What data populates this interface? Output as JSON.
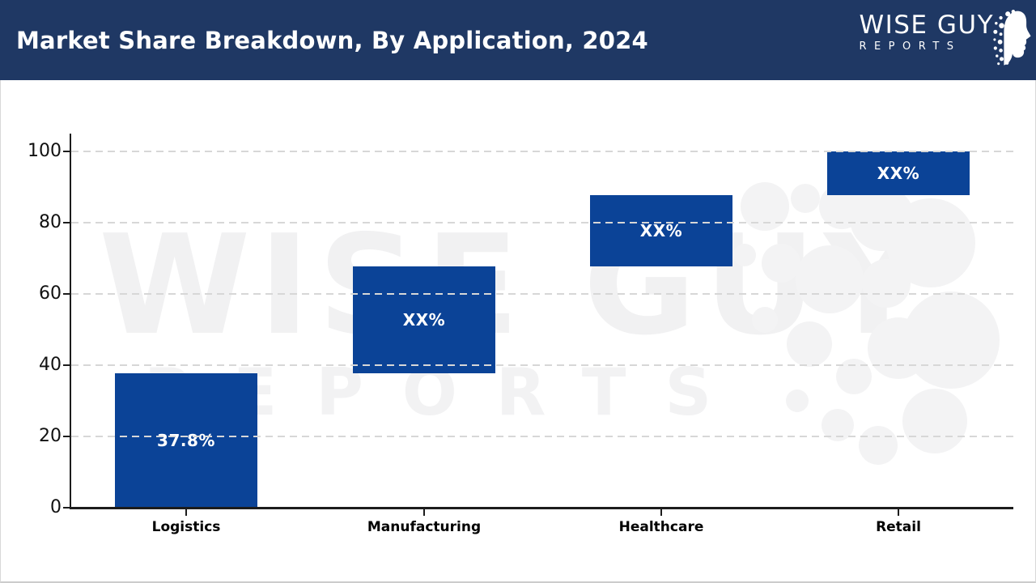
{
  "header": {
    "title": "Market Share Breakdown, By Application, 2024",
    "logo": {
      "line1": "WISE GUY",
      "line2": "REPORTS"
    }
  },
  "watermark": {
    "line1": "WISE GUY",
    "line2": "REPORTS"
  },
  "colors": {
    "header_bg": "#1f3864",
    "bar": "#0b4397",
    "gridline": "#d7d7d7",
    "axis": "#1c1c1c",
    "watermark": "#f1f1f2"
  },
  "chart_data": {
    "type": "bar",
    "subtype": "waterfall",
    "categories": [
      "Logistics",
      "Manufacturing",
      "Healthcare",
      "Retail"
    ],
    "series": [
      {
        "name": "Logistics",
        "start": 0,
        "end": 37.8,
        "label": "37.8%"
      },
      {
        "name": "Manufacturing",
        "start": 37.8,
        "end": 67.8,
        "label": "XX%"
      },
      {
        "name": "Healthcare",
        "start": 67.8,
        "end": 87.8,
        "label": "XX%"
      },
      {
        "name": "Retail",
        "start": 87.8,
        "end": 100,
        "label": "XX%"
      }
    ],
    "yticks": [
      0,
      20,
      40,
      60,
      80,
      100
    ],
    "ylim": [
      0,
      105
    ],
    "xlabel": "",
    "ylabel": "",
    "grid": "horizontal-dashed-over-bars",
    "legend": "none",
    "bar_color": "#0b4397",
    "bar_label_color": "#ffffff"
  }
}
